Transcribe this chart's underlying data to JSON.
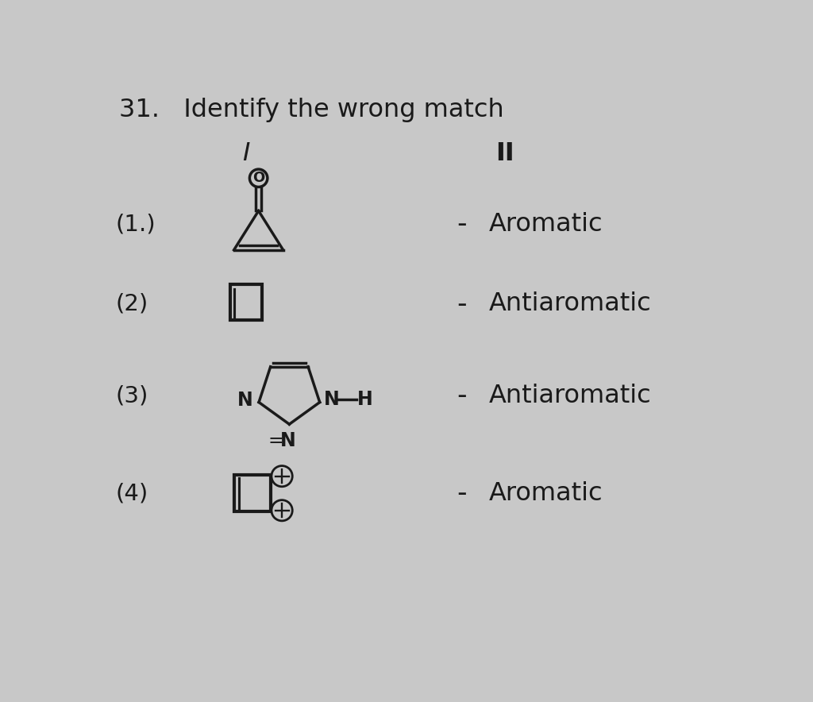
{
  "bg_color": "#c8c8c8",
  "title": "31.   Identify the wrong match",
  "col1_header": "I",
  "col2_header": "II",
  "rows": [
    {
      "label": "(1.)",
      "description": "Aromatic"
    },
    {
      "label": "(2)",
      "description": "Antiaromatic"
    },
    {
      "label": "(3)",
      "description": "Antiaromatic"
    },
    {
      "label": "(4)",
      "description": "Aromatic"
    }
  ],
  "title_fontsize": 23,
  "label_fontsize": 21,
  "desc_fontsize": 23,
  "header_fontsize": 21,
  "dash": "-"
}
